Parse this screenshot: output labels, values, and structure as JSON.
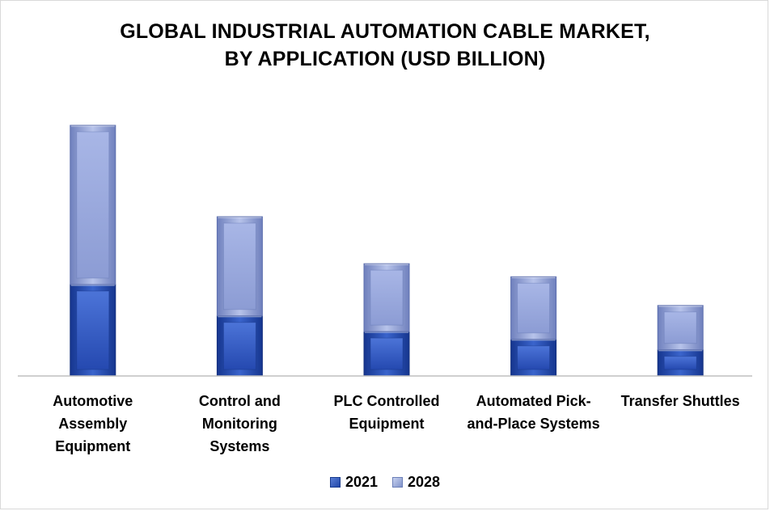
{
  "chart_data": {
    "type": "bar",
    "stacked": true,
    "title": [
      "GLOBAL INDUSTRIAL AUTOMATION CABLE MARKET,",
      "BY APPLICATION (USD BILLION)"
    ],
    "categories": [
      "Automotive Assembly Equipment",
      "Control and Monitoring Systems",
      "PLC Controlled Equipment",
      "Automated Pick-and-Place Systems",
      "Transfer Shuttles"
    ],
    "category_lines": [
      [
        "Automotive",
        "Assembly",
        "Equipment"
      ],
      [
        "Control and",
        "Monitoring",
        "Systems"
      ],
      [
        "PLC Controlled",
        "Equipment"
      ],
      [
        "Automated Pick-",
        "and-Place Systems"
      ],
      [
        "Transfer Shuttles"
      ]
    ],
    "series": [
      {
        "name": "2021",
        "values": [
          3.5,
          2.3,
          1.7,
          1.4,
          1.0
        ],
        "color": "#2a52be"
      },
      {
        "name": "2028",
        "values": [
          6.1,
          3.8,
          2.6,
          2.4,
          1.7
        ],
        "color": "#9aa8dc"
      }
    ],
    "ylim": [
      0,
      10
    ],
    "grid": false,
    "legend_position": "bottom"
  },
  "legend": {
    "label_2021": "2021",
    "label_2028": "2028"
  }
}
